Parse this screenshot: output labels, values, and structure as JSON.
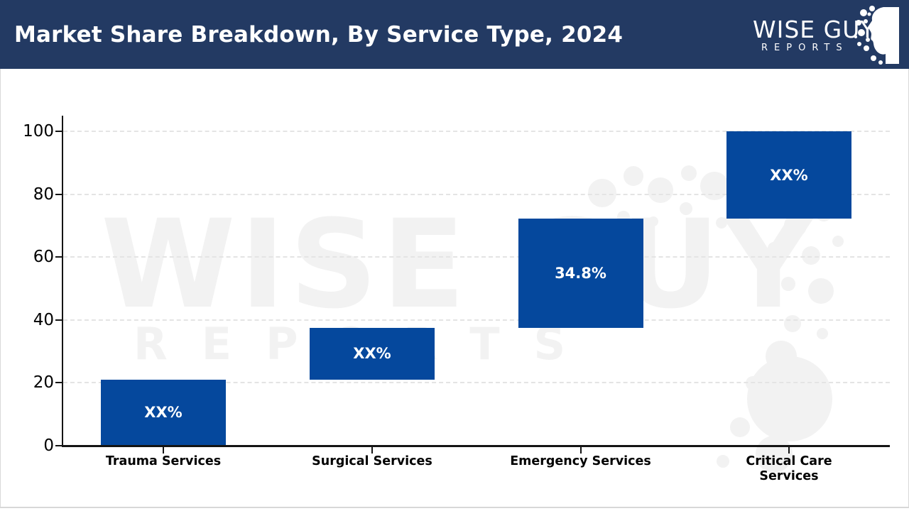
{
  "header": {
    "title": "Market Share Breakdown, By Service Type, 2024",
    "logo": {
      "line1": "WISE GUY",
      "line2": "REPORTS"
    }
  },
  "watermark": {
    "line1": "WISE GUY",
    "line2": "REPORTS"
  },
  "chart_data": {
    "type": "bar",
    "subtype": "waterfall",
    "title": "Market Share Breakdown, By Service Type, 2024",
    "categories": [
      "Trauma Services",
      "Surgical Services",
      "Emergency Services",
      "Critical Care\nServices"
    ],
    "segments": [
      {
        "category": "Trauma Services",
        "start": 0,
        "end": 21,
        "label": "XX%"
      },
      {
        "category": "Surgical Services",
        "start": 21,
        "end": 37.4,
        "label": "XX%"
      },
      {
        "category": "Emergency Services",
        "start": 37.4,
        "end": 72.2,
        "label": "34.8%"
      },
      {
        "category": "Critical Care Services",
        "start": 72.2,
        "end": 100,
        "label": "XX%"
      }
    ],
    "xlabel": "",
    "ylabel": "",
    "ylim": [
      0,
      100
    ],
    "yticks": [
      0,
      20,
      40,
      60,
      80,
      100
    ],
    "grid": "horizontal-dashed",
    "legend": "none",
    "bar_color": "#05489d",
    "bar_label_color": "#ffffff",
    "header_color": "#233a63",
    "axis_color": "#141414"
  }
}
